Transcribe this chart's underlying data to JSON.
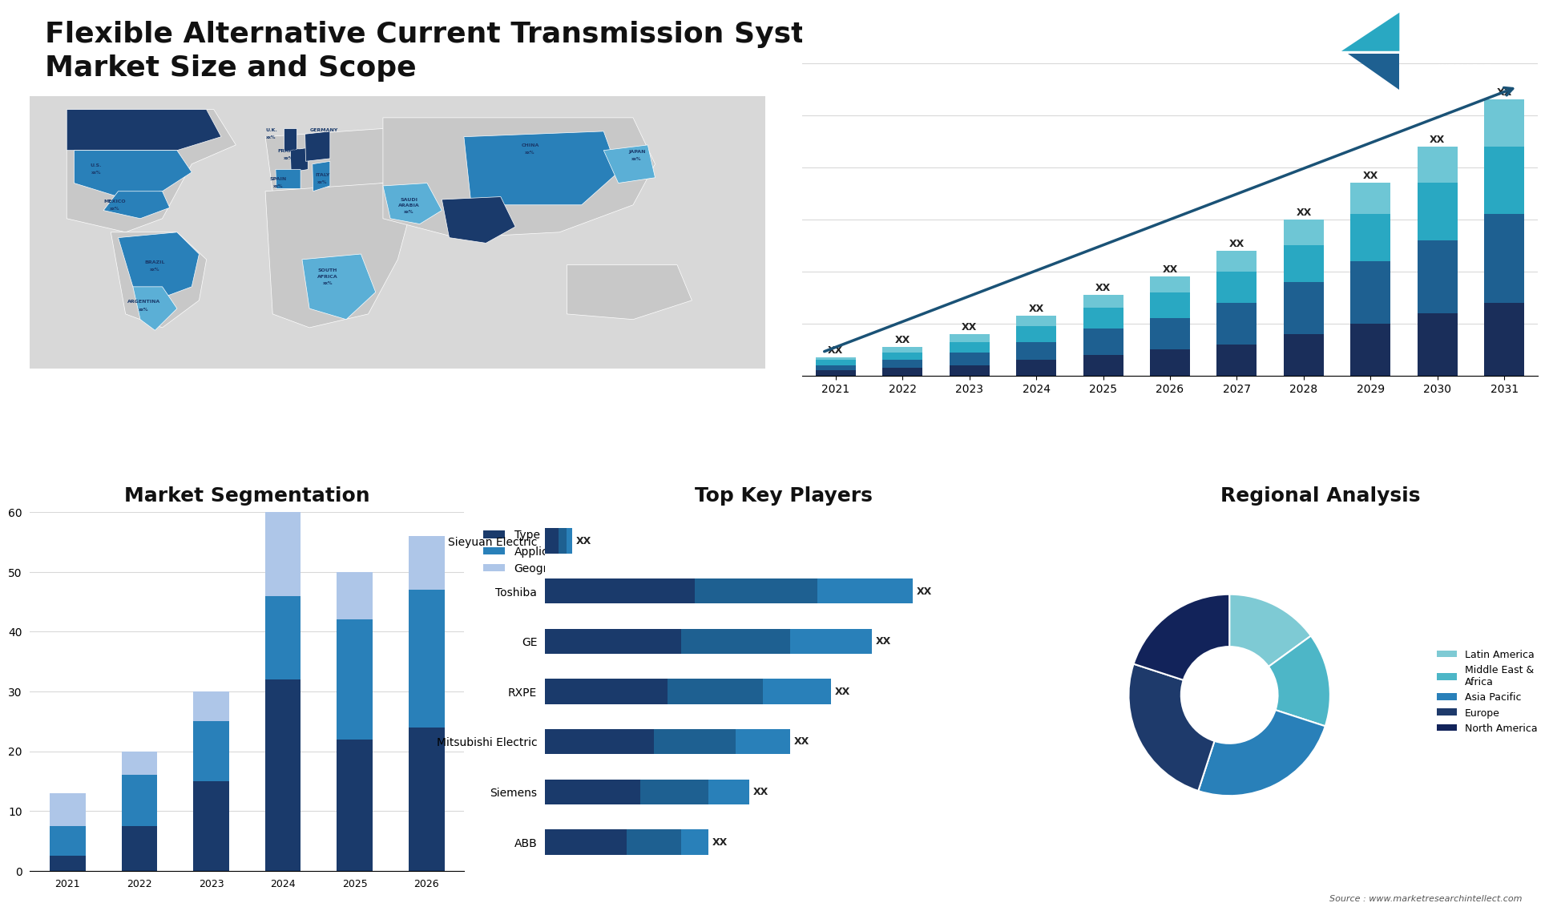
{
  "title_line1": "Flexible Alternative Current Transmission System Equipment",
  "title_line2": "Market Size and Scope",
  "title_fontsize": 28,
  "title_color": "#111111",
  "background_color": "#ffffff",
  "bar_chart_years": [
    2021,
    2022,
    2023,
    2024,
    2025,
    2026,
    2027,
    2028,
    2029,
    2030,
    2031
  ],
  "bar_chart_seg1": [
    1,
    1.5,
    2,
    3,
    4,
    5,
    6,
    8,
    10,
    12,
    14
  ],
  "bar_chart_seg2": [
    1,
    1.5,
    2.5,
    3.5,
    5,
    6,
    8,
    10,
    12,
    14,
    17
  ],
  "bar_chart_seg3": [
    1,
    1.5,
    2,
    3,
    4,
    5,
    6,
    7,
    9,
    11,
    13
  ],
  "bar_chart_seg4": [
    0.5,
    1,
    1.5,
    2,
    2.5,
    3,
    4,
    5,
    6,
    7,
    9
  ],
  "bar_colors_main": [
    "#1a2e5a",
    "#1e6091",
    "#29a8c2",
    "#6ec6d5"
  ],
  "bar_arrow_color": "#1a5276",
  "seg_years": [
    2021,
    2022,
    2023,
    2024,
    2025,
    2026
  ],
  "seg_type": [
    2.5,
    7.5,
    15,
    32,
    22,
    24
  ],
  "seg_application": [
    5,
    8.5,
    10,
    14,
    20,
    23
  ],
  "seg_geography": [
    5.5,
    4,
    5,
    14,
    8,
    9
  ],
  "seg_colors": [
    "#1a3a6b",
    "#2980b9",
    "#aec6e8"
  ],
  "seg_legend_labels": [
    "Type",
    "Application",
    "Geography"
  ],
  "seg_title": "Market Segmentation",
  "seg_ylim": [
    0,
    60
  ],
  "seg_yticks": [
    0,
    10,
    20,
    30,
    40,
    50,
    60
  ],
  "top_players": [
    "ABB",
    "Siemens",
    "Mitsubishi Electric",
    "RXPE",
    "GE",
    "Toshiba",
    "Sieyuan Electric"
  ],
  "top_players_bar1": [
    3,
    3.5,
    4,
    4.5,
    5,
    5.5,
    0.5
  ],
  "top_players_bar2": [
    2,
    2.5,
    3,
    3.5,
    4,
    4.5,
    0.3
  ],
  "top_players_bar3": [
    1,
    1.5,
    2,
    2.5,
    3,
    3.5,
    0.2
  ],
  "top_players_colors": [
    "#1a3a6b",
    "#1e6091",
    "#2980b9"
  ],
  "top_players_title": "Top Key Players",
  "donut_values": [
    15,
    15,
    25,
    25,
    20
  ],
  "donut_colors": [
    "#7ecad4",
    "#4db6c7",
    "#2980b9",
    "#1e3a6b",
    "#12235a"
  ],
  "donut_labels": [
    "Latin America",
    "Middle East &\nAfrica",
    "Asia Pacific",
    "Europe",
    "North America"
  ],
  "donut_title": "Regional Analysis",
  "source_text": "Source : www.marketresearchintellect.com",
  "highlight_dark": "#1a3a6b",
  "highlight_mid": "#2980b9",
  "highlight_light": "#5bafd6",
  "map_bg": "#d8d8d8",
  "continent_color": "#c8c8c8",
  "label_color": "#1a3a6b"
}
